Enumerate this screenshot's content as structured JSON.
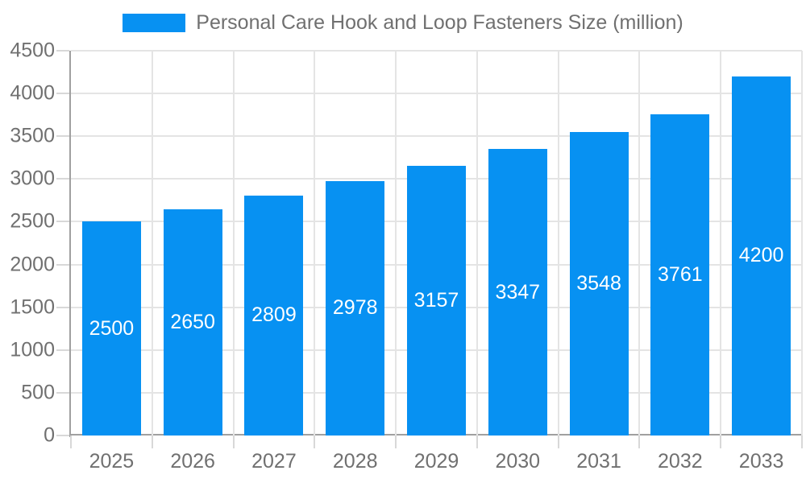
{
  "chart_data": {
    "type": "bar",
    "title": "Personal Care Hook and Loop Fasteners Size (million)",
    "legend_entries": [
      "Personal Care Hook and Loop Fasteners Size (million)"
    ],
    "legend_position": "top-center",
    "categories": [
      "2025",
      "2026",
      "2027",
      "2028",
      "2029",
      "2030",
      "2031",
      "2032",
      "2033"
    ],
    "values": [
      2500,
      2650,
      2809,
      2978,
      3157,
      3347,
      3548,
      3761,
      4200
    ],
    "bar_value_labels": [
      "2500",
      "2650",
      "2809",
      "2978",
      "3157",
      "3347",
      "3548",
      "3761",
      "4200"
    ],
    "bar_label_placement": "inside-center",
    "xlabel": "",
    "ylabel": "",
    "ylim": [
      0,
      4500
    ],
    "ytick_step": 500,
    "yticks": [
      0,
      500,
      1000,
      1500,
      2000,
      2500,
      3000,
      3500,
      4000,
      4500
    ],
    "grid": true,
    "colors": {
      "bar": "#0791F2",
      "text": "#707070",
      "grid": "#E4E4E4",
      "tick": "#D8D8D8",
      "axis": "#A0A0A0",
      "bar_label_text": "#FFFFFF",
      "background": "#FFFFFF"
    }
  }
}
